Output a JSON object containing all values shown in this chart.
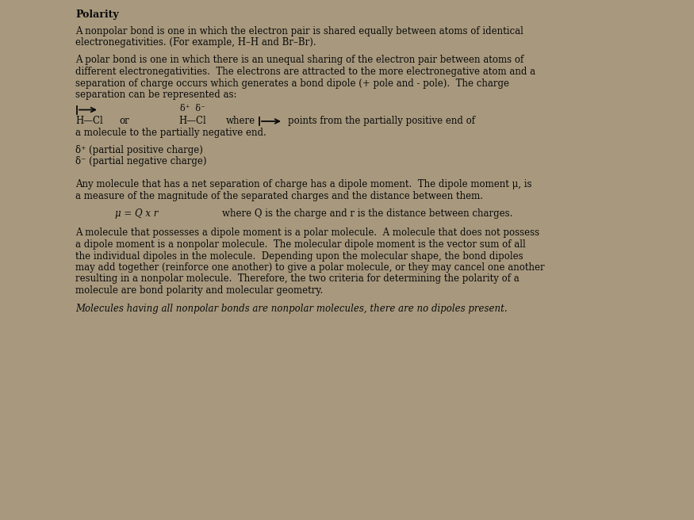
{
  "bg_color": "#a8997e",
  "text_color": "#0a0a0a",
  "title": "Polarity",
  "p1l1": "A nonpolar bond is one in which the electron pair is shared equally between atoms of identical",
  "p1l2": "electronegativities. (For example, H–H and Br–Br).",
  "p2l1": "A polar bond is one in which there is an unequal sharing of the electron pair between atoms of",
  "p2l2": "different electronegativities.  The electrons are attracted to the more electronegative atom and a",
  "p2l3": "separation of charge occurs which generates a bond dipole (+ pole and - pole).  The charge",
  "p2l4": "separation can be represented as:",
  "delta_plus": "δ⁺ (partial positive charge)",
  "delta_minus": "δ⁻ (partial negative charge)",
  "p3l1": "Any molecule that has a net separation of charge has a dipole moment.  The dipole moment μ, is",
  "p3l2": "a measure of the magnitude of the separated charges and the distance between them.",
  "formula_left": "μ = Q x r",
  "formula_right": "where Q is the charge and r is the distance between charges.",
  "p4l1": "A molecule that possesses a dipole moment is a polar molecule.  A molecule that does not possess",
  "p4l2": "a dipole moment is a nonpolar molecule.  The molecular dipole moment is the vector sum of all",
  "p4l3": "the individual dipoles in the molecule.  Depending upon the molecular shape, the bond dipoles",
  "p4l4": "may add together (reinforce one another) to give a polar molecule, or they may cancel one another",
  "p4l5": "resulting in a nonpolar molecule.  Therefore, the two criteria for determining the polarity of a",
  "p4l6": "molecule are bond polarity and molecular geometry.",
  "p5": "Molecules having all nonpolar bonds are nonpolar molecules, there are no dipoles present."
}
